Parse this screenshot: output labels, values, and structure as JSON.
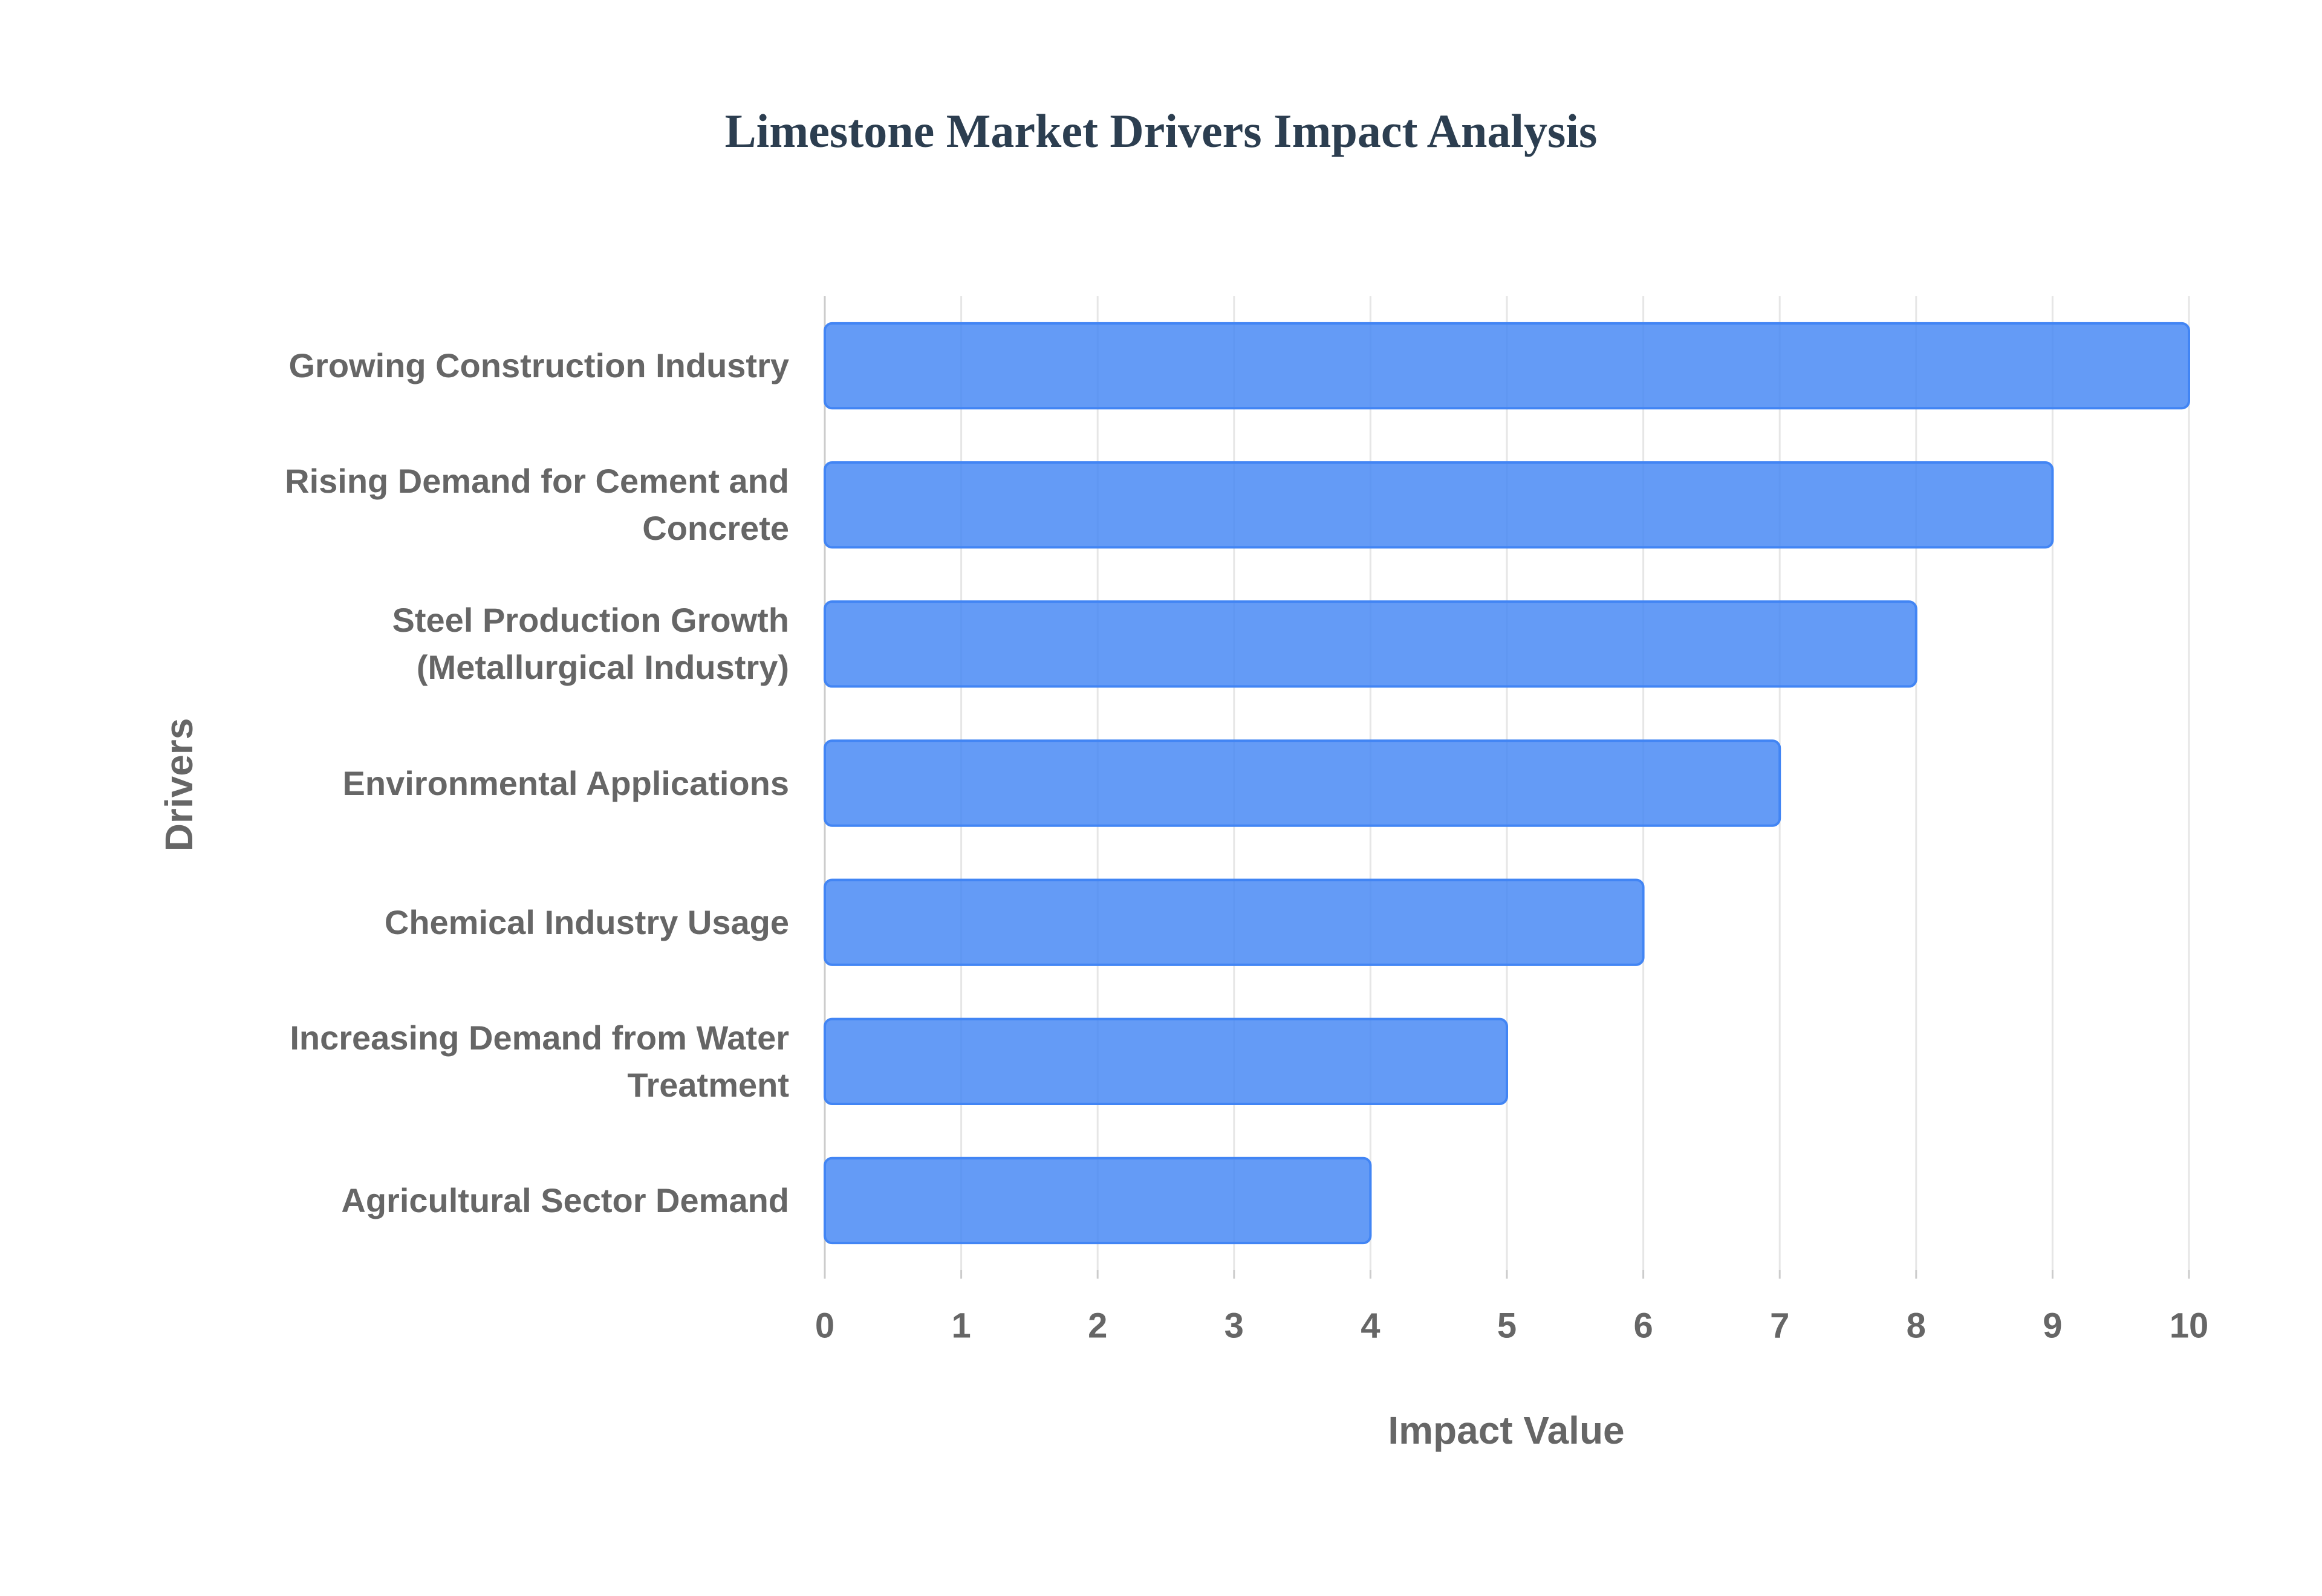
{
  "chart_data": {
    "type": "bar",
    "orientation": "horizontal",
    "title": "Limestone Market Drivers Impact Analysis",
    "x_label": "Impact Value",
    "y_label": "Drivers",
    "categories": [
      "Growing Construction Industry",
      "Rising Demand for Cement and Concrete",
      "Steel Production Growth (Metallurgical Industry)",
      "Environmental Applications",
      "Chemical Industry Usage",
      "Increasing Demand from Water Treatment",
      "Agricultural Sector Demand"
    ],
    "values": [
      10,
      9,
      8,
      7,
      6,
      5,
      4
    ],
    "color": "#4285f4",
    "xlim": [
      0,
      10
    ],
    "xticks": [
      0,
      1,
      2,
      3,
      4,
      5,
      6,
      7,
      8,
      9,
      10
    ],
    "grid": true
  }
}
